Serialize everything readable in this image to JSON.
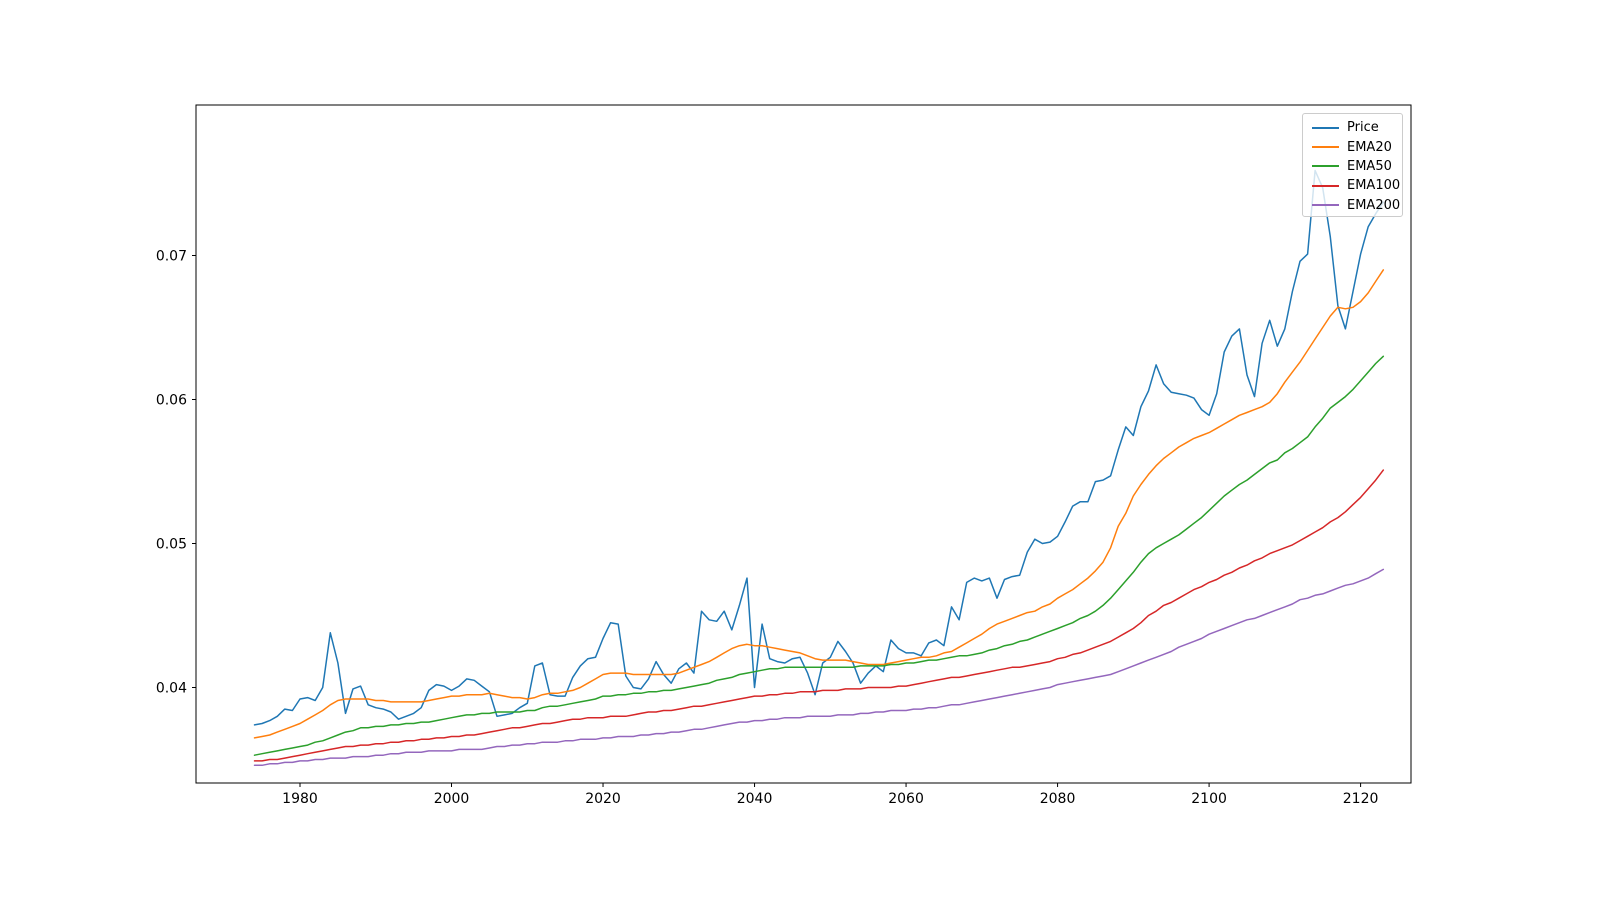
{
  "chart_data": {
    "type": "line",
    "title": "",
    "xlabel": "",
    "ylabel": "",
    "grid": false,
    "legend_position": "upper right",
    "x_start": 1974,
    "x_step": 1,
    "x_end": 2123,
    "xlim": [
      1966.5,
      2126.6
    ],
    "ylim": [
      0.0334,
      0.0804
    ],
    "x_ticks": [
      {
        "value": 1980,
        "label": "1980"
      },
      {
        "value": 2000,
        "label": "2000"
      },
      {
        "value": 2020,
        "label": "2020"
      },
      {
        "value": 2040,
        "label": "2040"
      },
      {
        "value": 2060,
        "label": "2060"
      },
      {
        "value": 2080,
        "label": "2080"
      },
      {
        "value": 2100,
        "label": "2100"
      },
      {
        "value": 2120,
        "label": "2120"
      }
    ],
    "y_ticks": [
      {
        "value": 0.04,
        "label": "0.04"
      },
      {
        "value": 0.05,
        "label": "0.05"
      },
      {
        "value": 0.06,
        "label": "0.06"
      },
      {
        "value": 0.07,
        "label": "0.07"
      }
    ],
    "series": [
      {
        "name": "Price",
        "color": "#1f77b4",
        "values": [
          0.0374,
          0.0375,
          0.0377,
          0.038,
          0.0385,
          0.0384,
          0.0392,
          0.0393,
          0.0391,
          0.04,
          0.0438,
          0.0417,
          0.0382,
          0.0399,
          0.0401,
          0.0388,
          0.0386,
          0.0385,
          0.0383,
          0.0378,
          0.038,
          0.0382,
          0.0386,
          0.0398,
          0.0402,
          0.0401,
          0.0398,
          0.0401,
          0.0406,
          0.0405,
          0.0401,
          0.0397,
          0.038,
          0.0381,
          0.0382,
          0.0386,
          0.0389,
          0.0415,
          0.0417,
          0.0395,
          0.0394,
          0.0394,
          0.0407,
          0.0415,
          0.042,
          0.0421,
          0.0434,
          0.0445,
          0.0444,
          0.0408,
          0.04,
          0.0399,
          0.0406,
          0.0418,
          0.0409,
          0.0403,
          0.0413,
          0.0417,
          0.041,
          0.0453,
          0.0447,
          0.0446,
          0.0453,
          0.044,
          0.0457,
          0.0476,
          0.04,
          0.0444,
          0.042,
          0.0418,
          0.0417,
          0.042,
          0.0421,
          0.041,
          0.0395,
          0.0417,
          0.0421,
          0.0432,
          0.0425,
          0.0417,
          0.0403,
          0.041,
          0.0415,
          0.0411,
          0.0433,
          0.0427,
          0.0424,
          0.0424,
          0.0422,
          0.0431,
          0.0433,
          0.0429,
          0.0456,
          0.0447,
          0.0473,
          0.0476,
          0.0474,
          0.0476,
          0.0462,
          0.0475,
          0.0477,
          0.0478,
          0.0494,
          0.0503,
          0.05,
          0.0501,
          0.0505,
          0.0515,
          0.0526,
          0.0529,
          0.0529,
          0.0543,
          0.0544,
          0.0547,
          0.0565,
          0.0581,
          0.0575,
          0.0595,
          0.0606,
          0.0624,
          0.0611,
          0.0605,
          0.0604,
          0.0603,
          0.0601,
          0.0593,
          0.0589,
          0.0604,
          0.0633,
          0.0644,
          0.0649,
          0.0617,
          0.0602,
          0.0639,
          0.0655,
          0.0637,
          0.0649,
          0.0675,
          0.0696,
          0.0701,
          0.0759,
          0.0747,
          0.0713,
          0.0665,
          0.0649,
          0.0675,
          0.0701,
          0.072,
          0.0729,
          0.0737
        ]
      },
      {
        "name": "EMA20",
        "color": "#ff7f0e",
        "values": [
          0.0365,
          0.0366,
          0.0367,
          0.0369,
          0.0371,
          0.0373,
          0.0375,
          0.0378,
          0.0381,
          0.0384,
          0.0388,
          0.0391,
          0.0392,
          0.0392,
          0.0392,
          0.0392,
          0.0391,
          0.0391,
          0.039,
          0.039,
          0.039,
          0.039,
          0.039,
          0.0391,
          0.0392,
          0.0393,
          0.0394,
          0.0394,
          0.0395,
          0.0395,
          0.0395,
          0.0396,
          0.0395,
          0.0394,
          0.0393,
          0.0393,
          0.0392,
          0.0393,
          0.0395,
          0.0396,
          0.0396,
          0.0397,
          0.0398,
          0.04,
          0.0403,
          0.0406,
          0.0409,
          0.041,
          0.041,
          0.041,
          0.0409,
          0.0409,
          0.0409,
          0.0409,
          0.0409,
          0.0409,
          0.041,
          0.0412,
          0.0414,
          0.0416,
          0.0418,
          0.0421,
          0.0424,
          0.0427,
          0.0429,
          0.043,
          0.0429,
          0.0429,
          0.0428,
          0.0427,
          0.0426,
          0.0425,
          0.0424,
          0.0422,
          0.042,
          0.0419,
          0.0419,
          0.0419,
          0.0419,
          0.0418,
          0.0417,
          0.0416,
          0.0416,
          0.0416,
          0.0417,
          0.0418,
          0.0419,
          0.042,
          0.0421,
          0.0421,
          0.0422,
          0.0424,
          0.0425,
          0.0428,
          0.0431,
          0.0434,
          0.0437,
          0.0441,
          0.0444,
          0.0446,
          0.0448,
          0.045,
          0.0452,
          0.0453,
          0.0456,
          0.0458,
          0.0462,
          0.0465,
          0.0468,
          0.0472,
          0.0476,
          0.0481,
          0.0487,
          0.0497,
          0.0512,
          0.0521,
          0.0533,
          0.0541,
          0.0548,
          0.0554,
          0.0559,
          0.0563,
          0.0567,
          0.057,
          0.0573,
          0.0575,
          0.0577,
          0.058,
          0.0583,
          0.0586,
          0.0589,
          0.0591,
          0.0593,
          0.0595,
          0.0598,
          0.0604,
          0.0612,
          0.0619,
          0.0626,
          0.0634,
          0.0642,
          0.065,
          0.0658,
          0.0664,
          0.0663,
          0.0664,
          0.0668,
          0.0674,
          0.0682,
          0.069
        ]
      },
      {
        "name": "EMA50",
        "color": "#2ca02c",
        "values": [
          0.0353,
          0.0354,
          0.0355,
          0.0356,
          0.0357,
          0.0358,
          0.0359,
          0.036,
          0.0362,
          0.0363,
          0.0365,
          0.0367,
          0.0369,
          0.037,
          0.0372,
          0.0372,
          0.0373,
          0.0373,
          0.0374,
          0.0374,
          0.0375,
          0.0375,
          0.0376,
          0.0376,
          0.0377,
          0.0378,
          0.0379,
          0.038,
          0.0381,
          0.0381,
          0.0382,
          0.0382,
          0.0383,
          0.0383,
          0.0383,
          0.0383,
          0.0384,
          0.0384,
          0.0386,
          0.0387,
          0.0387,
          0.0388,
          0.0389,
          0.039,
          0.0391,
          0.0392,
          0.0394,
          0.0394,
          0.0395,
          0.0395,
          0.0396,
          0.0396,
          0.0397,
          0.0397,
          0.0398,
          0.0398,
          0.0399,
          0.04,
          0.0401,
          0.0402,
          0.0403,
          0.0405,
          0.0406,
          0.0407,
          0.0409,
          0.041,
          0.0411,
          0.0412,
          0.0413,
          0.0413,
          0.0414,
          0.0414,
          0.0414,
          0.0414,
          0.0414,
          0.0414,
          0.0414,
          0.0414,
          0.0414,
          0.0414,
          0.0415,
          0.0415,
          0.0415,
          0.0415,
          0.0416,
          0.0416,
          0.0417,
          0.0417,
          0.0418,
          0.0419,
          0.0419,
          0.042,
          0.0421,
          0.0422,
          0.0422,
          0.0423,
          0.0424,
          0.0426,
          0.0427,
          0.0429,
          0.043,
          0.0432,
          0.0433,
          0.0435,
          0.0437,
          0.0439,
          0.0441,
          0.0443,
          0.0445,
          0.0448,
          0.045,
          0.0453,
          0.0457,
          0.0462,
          0.0468,
          0.0474,
          0.048,
          0.0487,
          0.0493,
          0.0497,
          0.05,
          0.0503,
          0.0506,
          0.051,
          0.0514,
          0.0518,
          0.0523,
          0.0528,
          0.0533,
          0.0537,
          0.0541,
          0.0544,
          0.0548,
          0.0552,
          0.0556,
          0.0558,
          0.0563,
          0.0566,
          0.057,
          0.0574,
          0.0581,
          0.0587,
          0.0594,
          0.0598,
          0.0602,
          0.0607,
          0.0613,
          0.0619,
          0.0625,
          0.063
        ]
      },
      {
        "name": "EMA100",
        "color": "#d62728",
        "values": [
          0.0349,
          0.0349,
          0.035,
          0.035,
          0.0351,
          0.0352,
          0.0353,
          0.0354,
          0.0355,
          0.0356,
          0.0357,
          0.0358,
          0.0359,
          0.0359,
          0.036,
          0.036,
          0.0361,
          0.0361,
          0.0362,
          0.0362,
          0.0363,
          0.0363,
          0.0364,
          0.0364,
          0.0365,
          0.0365,
          0.0366,
          0.0366,
          0.0367,
          0.0367,
          0.0368,
          0.0369,
          0.037,
          0.0371,
          0.0372,
          0.0372,
          0.0373,
          0.0374,
          0.0375,
          0.0375,
          0.0376,
          0.0377,
          0.0378,
          0.0378,
          0.0379,
          0.0379,
          0.0379,
          0.038,
          0.038,
          0.038,
          0.0381,
          0.0382,
          0.0383,
          0.0383,
          0.0384,
          0.0384,
          0.0385,
          0.0386,
          0.0387,
          0.0387,
          0.0388,
          0.0389,
          0.039,
          0.0391,
          0.0392,
          0.0393,
          0.0394,
          0.0394,
          0.0395,
          0.0395,
          0.0396,
          0.0396,
          0.0397,
          0.0397,
          0.0397,
          0.0398,
          0.0398,
          0.0398,
          0.0399,
          0.0399,
          0.0399,
          0.04,
          0.04,
          0.04,
          0.04,
          0.0401,
          0.0401,
          0.0402,
          0.0403,
          0.0404,
          0.0405,
          0.0406,
          0.0407,
          0.0407,
          0.0408,
          0.0409,
          0.041,
          0.0411,
          0.0412,
          0.0413,
          0.0414,
          0.0414,
          0.0415,
          0.0416,
          0.0417,
          0.0418,
          0.042,
          0.0421,
          0.0423,
          0.0424,
          0.0426,
          0.0428,
          0.043,
          0.0432,
          0.0435,
          0.0438,
          0.0441,
          0.0445,
          0.045,
          0.0453,
          0.0457,
          0.0459,
          0.0462,
          0.0465,
          0.0468,
          0.047,
          0.0473,
          0.0475,
          0.0478,
          0.048,
          0.0483,
          0.0485,
          0.0488,
          0.049,
          0.0493,
          0.0495,
          0.0497,
          0.0499,
          0.0502,
          0.0505,
          0.0508,
          0.0511,
          0.0515,
          0.0518,
          0.0522,
          0.0527,
          0.0532,
          0.0538,
          0.0544,
          0.0551
        ]
      },
      {
        "name": "EMA200",
        "color": "#9467bd",
        "values": [
          0.0346,
          0.0346,
          0.0347,
          0.0347,
          0.0348,
          0.0348,
          0.0349,
          0.0349,
          0.035,
          0.035,
          0.0351,
          0.0351,
          0.0351,
          0.0352,
          0.0352,
          0.0352,
          0.0353,
          0.0353,
          0.0354,
          0.0354,
          0.0355,
          0.0355,
          0.0355,
          0.0356,
          0.0356,
          0.0356,
          0.0356,
          0.0357,
          0.0357,
          0.0357,
          0.0357,
          0.0358,
          0.0359,
          0.0359,
          0.036,
          0.036,
          0.0361,
          0.0361,
          0.0362,
          0.0362,
          0.0362,
          0.0363,
          0.0363,
          0.0364,
          0.0364,
          0.0364,
          0.0365,
          0.0365,
          0.0366,
          0.0366,
          0.0366,
          0.0367,
          0.0367,
          0.0368,
          0.0368,
          0.0369,
          0.0369,
          0.037,
          0.0371,
          0.0371,
          0.0372,
          0.0373,
          0.0374,
          0.0375,
          0.0376,
          0.0376,
          0.0377,
          0.0377,
          0.0378,
          0.0378,
          0.0379,
          0.0379,
          0.0379,
          0.038,
          0.038,
          0.038,
          0.038,
          0.0381,
          0.0381,
          0.0381,
          0.0382,
          0.0382,
          0.0383,
          0.0383,
          0.0384,
          0.0384,
          0.0384,
          0.0385,
          0.0385,
          0.0386,
          0.0386,
          0.0387,
          0.0388,
          0.0388,
          0.0389,
          0.039,
          0.0391,
          0.0392,
          0.0393,
          0.0394,
          0.0395,
          0.0396,
          0.0397,
          0.0398,
          0.0399,
          0.04,
          0.0402,
          0.0403,
          0.0404,
          0.0405,
          0.0406,
          0.0407,
          0.0408,
          0.0409,
          0.0411,
          0.0413,
          0.0415,
          0.0417,
          0.0419,
          0.0421,
          0.0423,
          0.0425,
          0.0428,
          0.043,
          0.0432,
          0.0434,
          0.0437,
          0.0439,
          0.0441,
          0.0443,
          0.0445,
          0.0447,
          0.0448,
          0.045,
          0.0452,
          0.0454,
          0.0456,
          0.0458,
          0.0461,
          0.0462,
          0.0464,
          0.0465,
          0.0467,
          0.0469,
          0.0471,
          0.0472,
          0.0474,
          0.0476,
          0.0479,
          0.0482
        ]
      }
    ]
  }
}
